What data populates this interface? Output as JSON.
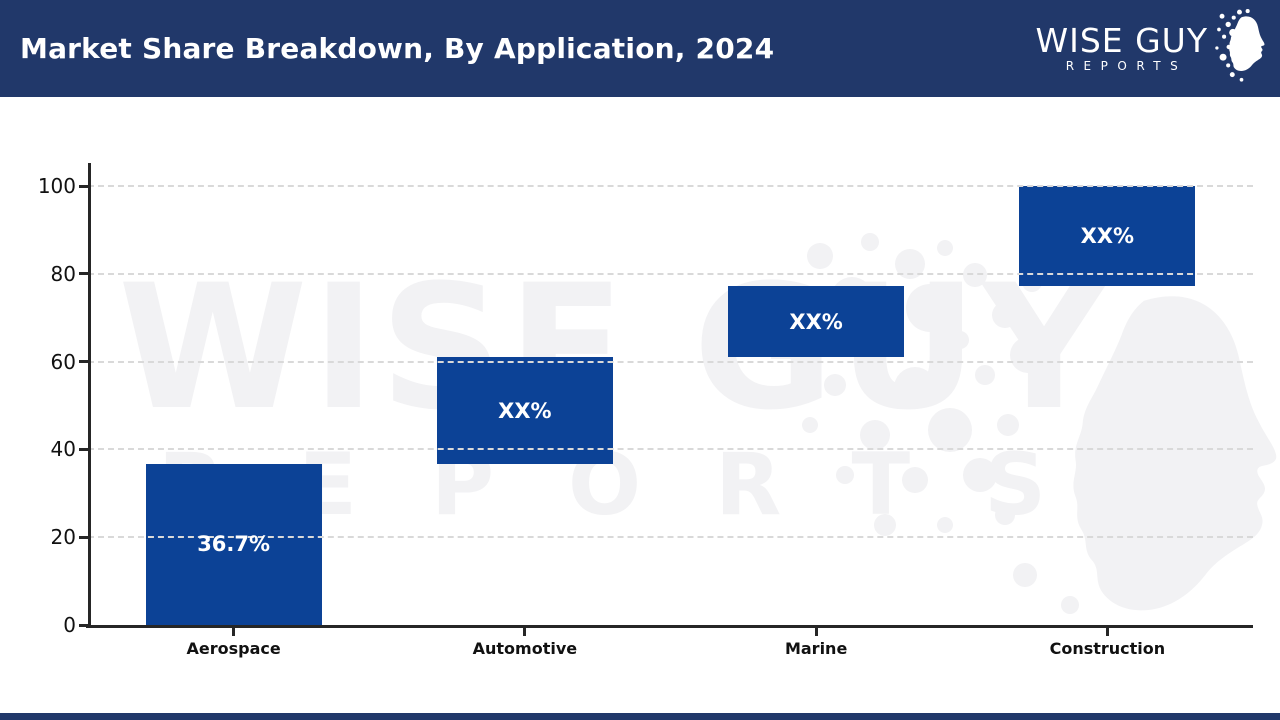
{
  "header": {
    "title": "Market Share Breakdown, By Application, 2024",
    "logo": {
      "line1": "WISE GUY",
      "line2": "REPORTS"
    }
  },
  "watermark": {
    "line1": "WISE GUY",
    "line2": "REPORTS"
  },
  "colors": {
    "header_bg": "#21386a",
    "bottom_bar_bg": "#21386a",
    "bar": "#0c4296",
    "grid": "#d9d9d9",
    "axis": "#262626",
    "bar_label": "#ffffff",
    "watermark": "#f2f2f4"
  },
  "chart_data": {
    "type": "bar",
    "subtype": "waterfall",
    "title": "Market Share Breakdown, By Application, 2024",
    "xlabel": "",
    "ylabel": "",
    "categories": [
      "Aerospace",
      "Automotive",
      "Marine",
      "Construction"
    ],
    "segments": [
      {
        "category": "Aerospace",
        "start": 0,
        "end": 36.7,
        "label": "36.7%"
      },
      {
        "category": "Automotive",
        "start": 36.7,
        "end": 61.0,
        "label": "XX%"
      },
      {
        "category": "Marine",
        "start": 61.0,
        "end": 77.2,
        "label": "XX%"
      },
      {
        "category": "Construction",
        "start": 77.2,
        "end": 100,
        "label": "XX%"
      }
    ],
    "yticks": [
      0,
      20,
      40,
      60,
      80,
      100
    ],
    "ylim": [
      0,
      105
    ],
    "grid": "horizontal dashed",
    "legend": "none"
  }
}
